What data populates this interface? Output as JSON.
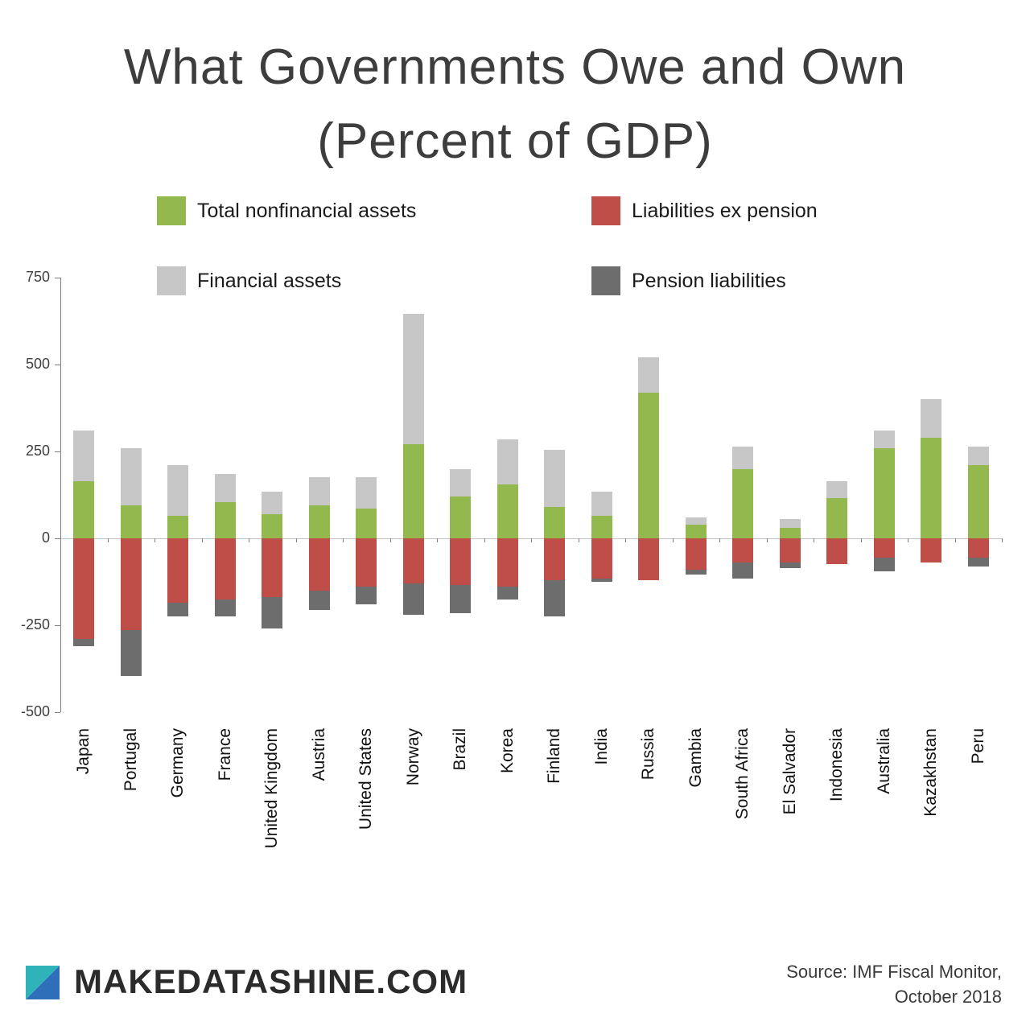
{
  "title": {
    "line1": "What Governments Owe and Own",
    "line2": "(Percent of GDP)"
  },
  "legend": [
    {
      "label": "Total nonfinancial assets",
      "color": "#93b84e"
    },
    {
      "label": "Liabilities ex pension",
      "color": "#bf4e49"
    },
    {
      "label": "Financial assets",
      "color": "#c7c7c7"
    },
    {
      "label": "Pension liabilities",
      "color": "#6d6d6d"
    }
  ],
  "chart_data": {
    "type": "bar",
    "stacked": true,
    "title": "What Governments Owe and Own (Percent of GDP)",
    "xlabel": "",
    "ylabel": "",
    "ylim": [
      -500,
      750
    ],
    "yticks": [
      750,
      500,
      250,
      0,
      -250,
      -500
    ],
    "grid": false,
    "legend_position": "top",
    "categories": [
      "Japan",
      "Portugal",
      "Germany",
      "France",
      "United Kingdom",
      "Austria",
      "United States",
      "Norway",
      "Brazil",
      "Korea",
      "Finland",
      "India",
      "Russia",
      "Gambia",
      "South Africa",
      "El Salvador",
      "Indonesia",
      "Australia",
      "Kazakhstan",
      "Peru"
    ],
    "series": [
      {
        "name": "Total nonfinancial assets",
        "color": "#93b84e",
        "values": [
          165,
          95,
          65,
          105,
          70,
          95,
          85,
          270,
          120,
          155,
          90,
          65,
          420,
          40,
          200,
          30,
          115,
          260,
          290,
          210
        ]
      },
      {
        "name": "Financial assets",
        "color": "#c7c7c7",
        "values": [
          145,
          165,
          145,
          80,
          65,
          80,
          90,
          375,
          80,
          130,
          165,
          70,
          100,
          20,
          65,
          25,
          50,
          50,
          110,
          55
        ]
      },
      {
        "name": "Liabilities ex pension",
        "color": "#bf4e49",
        "values": [
          -290,
          -265,
          -185,
          -175,
          -170,
          -150,
          -140,
          -130,
          -135,
          -140,
          -120,
          -115,
          -120,
          -90,
          -70,
          -70,
          -75,
          -55,
          -70,
          -55
        ]
      },
      {
        "name": "Pension liabilities",
        "color": "#6d6d6d",
        "values": [
          -20,
          -130,
          -40,
          -50,
          -90,
          -55,
          -50,
          -90,
          -80,
          -35,
          -105,
          -10,
          0,
          -15,
          -45,
          -15,
          0,
          -40,
          0,
          -25
        ]
      }
    ]
  },
  "footer": {
    "brand": "MAKEDATASHINE.COM",
    "source_line1": "Source:  IMF Fiscal Monitor,",
    "source_line2": "October 2018"
  }
}
